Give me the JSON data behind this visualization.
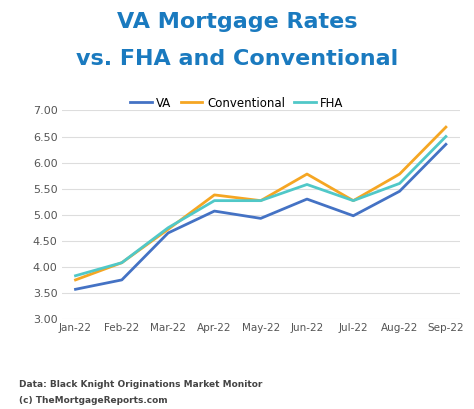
{
  "title_line1": "VA Mortgage Rates",
  "title_line2": "vs. FHA and Conventional",
  "title_color": "#1a7abf",
  "months": [
    "Jan-22",
    "Feb-22",
    "Mar-22",
    "Apr-22",
    "May-22",
    "Jun-22",
    "Jul-22",
    "Aug-22",
    "Sep-22"
  ],
  "va": [
    3.57,
    3.75,
    4.65,
    5.07,
    4.93,
    5.3,
    4.98,
    5.45,
    6.35
  ],
  "conventional": [
    3.75,
    4.08,
    4.72,
    5.38,
    5.27,
    5.78,
    5.27,
    5.78,
    6.68
  ],
  "fha": [
    3.83,
    4.08,
    4.75,
    5.27,
    5.27,
    5.58,
    5.27,
    5.6,
    6.5
  ],
  "va_color": "#4472c4",
  "conv_color": "#f5a623",
  "fha_color": "#50c8c8",
  "ylim_min": 3.0,
  "ylim_max": 7.0,
  "yticks": [
    3.0,
    3.5,
    4.0,
    4.5,
    5.0,
    5.5,
    6.0,
    6.5,
    7.0
  ],
  "bg_color": "#ffffff",
  "grid_color": "#dddddd",
  "tick_color": "#555555",
  "footnote1": "Data: Black Knight Originations Market Monitor",
  "footnote2": "(c) TheMortgageReports.com"
}
